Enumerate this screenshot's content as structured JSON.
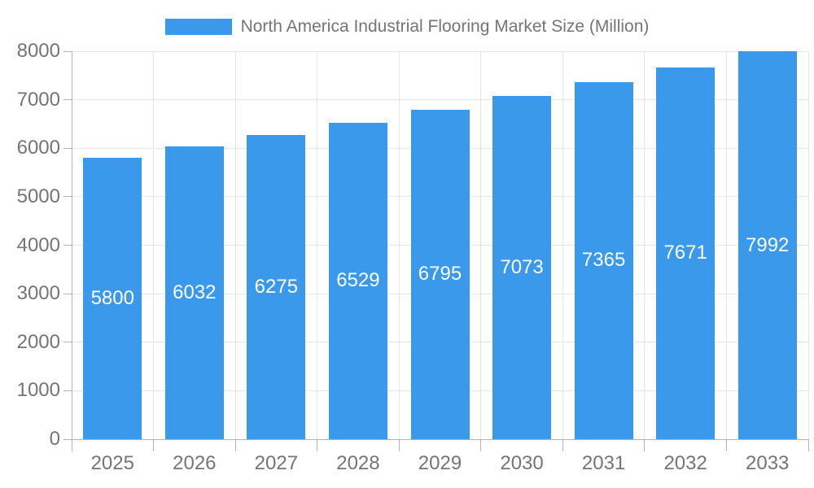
{
  "legend": {
    "label": "North America Industrial Flooring Market Size (Million)"
  },
  "chart_data": {
    "type": "bar",
    "title": "North America Industrial Flooring Market Size (Million)",
    "categories": [
      "2025",
      "2026",
      "2027",
      "2028",
      "2029",
      "2030",
      "2031",
      "2032",
      "2033"
    ],
    "values": [
      5800,
      6032,
      6275,
      6529,
      6795,
      7073,
      7365,
      7671,
      7992
    ],
    "xlabel": "",
    "ylabel": "",
    "ylim": [
      0,
      8000
    ],
    "ytick_step": 1000,
    "yticks": [
      0,
      1000,
      2000,
      3000,
      4000,
      5000,
      6000,
      7000,
      8000
    ],
    "grid": true,
    "legend_position": "top-center",
    "colors": {
      "bar": "#3b99ec",
      "value_label": "#ffffff",
      "axis_text": "#757575",
      "grid_line": "#e6e6e6",
      "axis_line": "#b3b3b3"
    }
  }
}
